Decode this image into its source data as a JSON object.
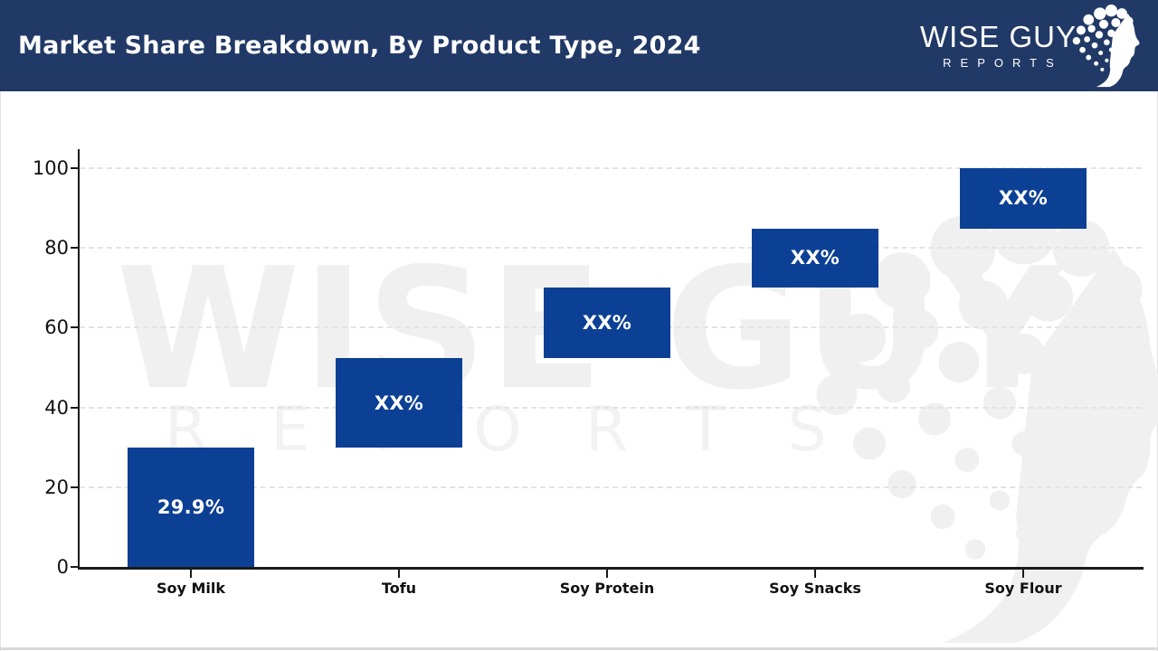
{
  "header": {
    "title": "Market Share Breakdown, By Product Type, 2024",
    "bg_color": "#213966",
    "brand": {
      "wordmark": "WISE GUY",
      "subtext": "REPORTS"
    }
  },
  "watermark": {
    "wordmark": "WISE GUY",
    "subtext": "REPORTS",
    "color": "#f0f0f0"
  },
  "chart_data": {
    "type": "bar",
    "subtype": "floating-waterfall",
    "title": "Market Share Breakdown, By Product Type, 2024",
    "categories": [
      "Soy Milk",
      "Tofu",
      "Soy Protein",
      "Soy Snacks",
      "Soy Flour"
    ],
    "series": [
      {
        "name": "Market share (%)",
        "segments": [
          {
            "category": "Soy Milk",
            "start": 0,
            "end": 29.9,
            "label": "29.9%"
          },
          {
            "category": "Tofu",
            "start": 29.9,
            "end": 52.4,
            "label": "XX%"
          },
          {
            "category": "Soy Protein",
            "start": 52.4,
            "end": 70.1,
            "label": "XX%"
          },
          {
            "category": "Soy Snacks",
            "start": 70.1,
            "end": 84.9,
            "label": "XX%"
          },
          {
            "category": "Soy Flour",
            "start": 84.9,
            "end": 100,
            "label": "XX%"
          }
        ]
      }
    ],
    "xlabel": "",
    "ylabel": "",
    "yticks": [
      0,
      20,
      40,
      60,
      80,
      100
    ],
    "ylim": [
      0,
      105
    ],
    "grid": "horizontal-dashed",
    "legend": "none",
    "bar_color": "#0c4094",
    "grid_color": "#e3e3e3",
    "axis_color": "#1a1a1a",
    "value_label_color": "#ffffff"
  }
}
